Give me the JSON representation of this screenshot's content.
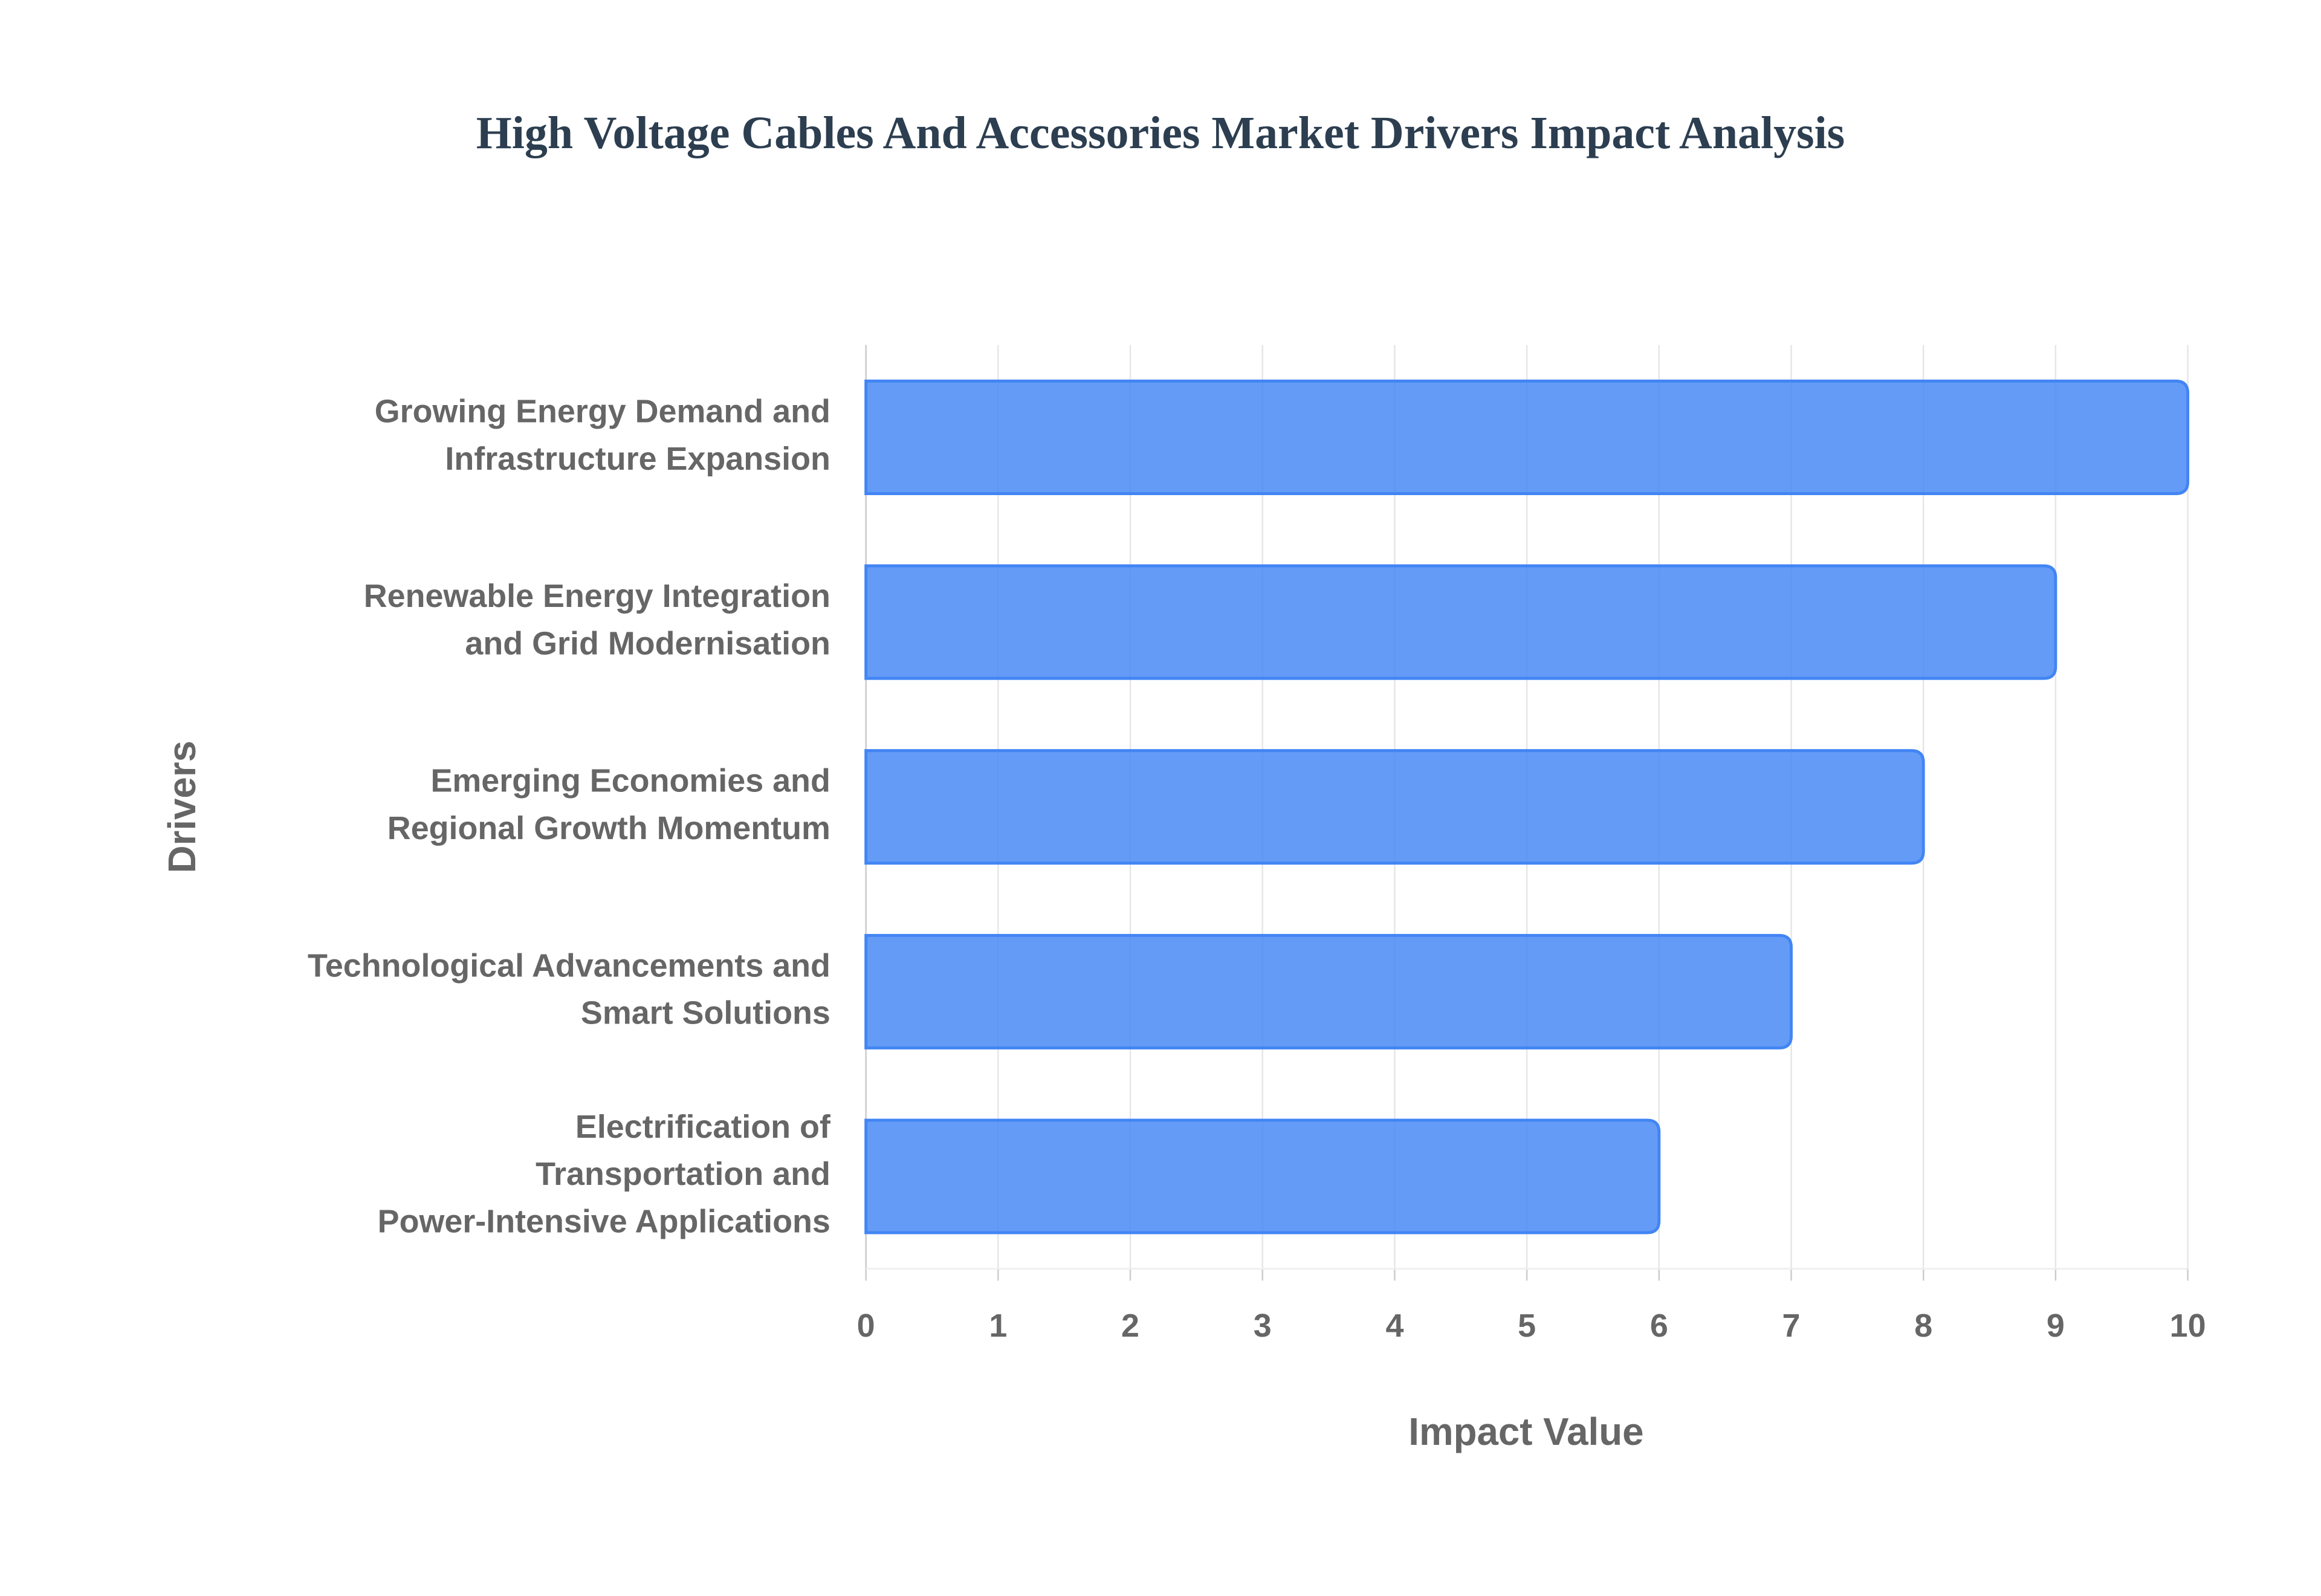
{
  "chart_data": {
    "type": "bar",
    "orientation": "horizontal",
    "title": "High Voltage Cables And Accessories Market Drivers Impact Analysis",
    "x_label": "Impact Value",
    "y_label": "Drivers",
    "categories": [
      [
        "Growing Energy Demand and",
        "Infrastructure Expansion"
      ],
      [
        "Renewable Energy Integration",
        "and Grid Modernisation"
      ],
      [
        "Emerging Economies and",
        "Regional Growth Momentum"
      ],
      [
        "Technological Advancements and",
        "Smart Solutions"
      ],
      [
        "Electrification of",
        "Transportation and",
        "Power-Intensive Applications"
      ]
    ],
    "values": [
      10,
      9,
      8,
      7,
      6
    ],
    "color": "#4285f4",
    "xlim": [
      0,
      10
    ],
    "xticks": [
      0,
      1,
      2,
      3,
      4,
      5,
      6,
      7,
      8,
      9,
      10
    ],
    "grid": true
  }
}
